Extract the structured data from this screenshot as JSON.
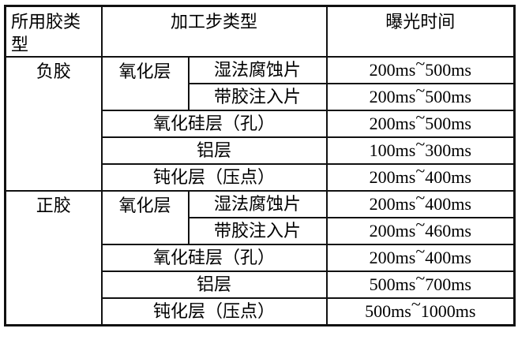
{
  "table": {
    "header": {
      "resist_type": "所用胶类型",
      "process_step": "加工步类型",
      "exposure_time": "曝光时间"
    },
    "rows": [
      {
        "resist": "负胶",
        "layer": "氧化层",
        "step": "湿法腐蚀片",
        "time": "200ms~500ms"
      },
      {
        "step": "带胶注入片",
        "time": "200ms~500ms"
      },
      {
        "step": "氧化硅层（孔）",
        "time": "200ms~500ms"
      },
      {
        "step": "铝层",
        "time": "100ms~300ms"
      },
      {
        "step": "钝化层（压点）",
        "time": "200ms~400ms"
      },
      {
        "resist": "正胶",
        "layer": "氧化层",
        "step": "湿法腐蚀片",
        "time": "200ms~400ms"
      },
      {
        "step": "带胶注入片",
        "time": "200ms~460ms"
      },
      {
        "step": "氧化硅层（孔）",
        "time": "200ms~400ms"
      },
      {
        "step": "铝层",
        "time": "500ms~700ms"
      },
      {
        "step": "钝化层（压点）",
        "time": "500ms~1000ms"
      }
    ]
  }
}
